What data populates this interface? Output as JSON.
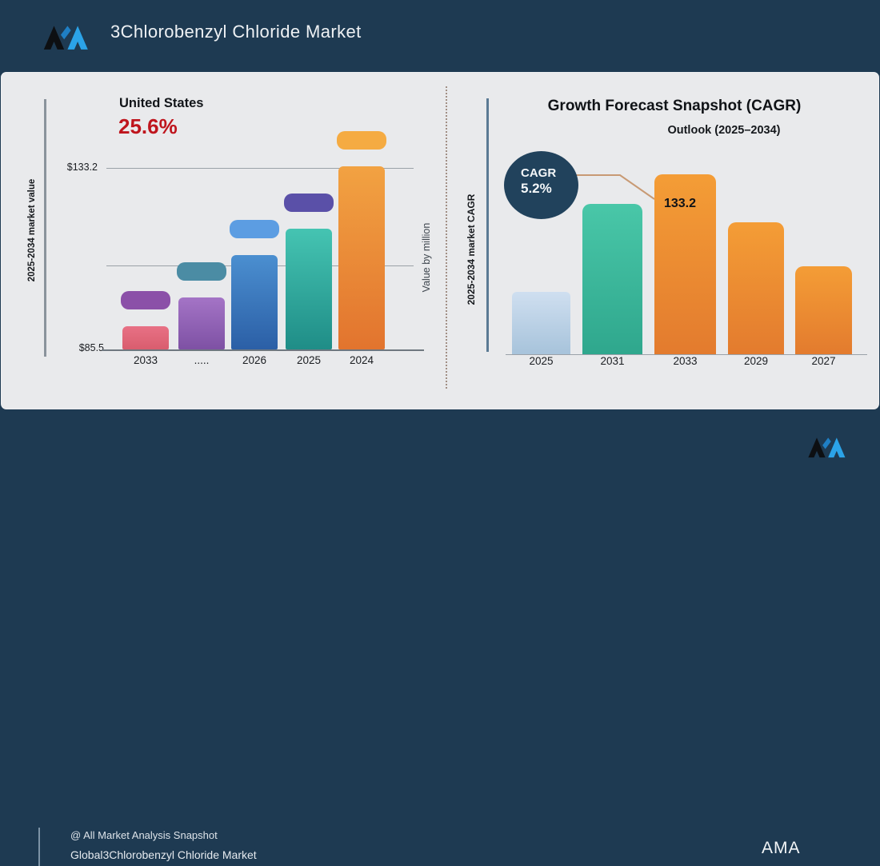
{
  "header": {
    "title": "3Chlorobenzyl Chloride Market"
  },
  "footer": {
    "line1": "@ All Market Analysis Snapshot",
    "line2": "Global3Chlorobenzyl Chloride Market",
    "brand": "AMA"
  },
  "left_chart": {
    "region_label": "United States",
    "growth_value": "25.6%",
    "y_axis_label": "2025-2034 market value",
    "tick_top": "$133.2",
    "tick_bottom": "$85.5"
  },
  "middle": {
    "value_label": "Value by million"
  },
  "right_chart": {
    "title": "Growth Forecast Snapshot (CAGR)",
    "subtitle": "Outlook (2025–2034)",
    "y_axis_label": "2025-2034 market CAGR",
    "cagr_label": "CAGR",
    "cagr_value": "5.2%",
    "bar_annotation": "133.2"
  },
  "colors": {
    "background_navy": "#1e3a52",
    "panel": "#e9eaec",
    "accent_red": "#bf151d",
    "connector_tan": "#c89a74",
    "divider_dotted": "#a18f85",
    "circle_navy": "#21425c"
  },
  "chart_data": [
    {
      "type": "bar",
      "title": "United States 25.6%",
      "ylabel": "2025-2034 market value",
      "y_axis_unit_note": "Value by million",
      "ylim": [
        85.5,
        140
      ],
      "y_reference_lines": [
        133.2,
        85.5
      ],
      "categories": [
        "2033",
        ".....",
        "2026",
        "2025",
        "2024"
      ],
      "values_estimated": [
        91.5,
        99,
        110.2,
        117,
        133.4
      ],
      "bars": [
        {
          "label": "2033",
          "value": 91.5,
          "grad": [
            "#e87185",
            "#d95d6e"
          ],
          "cap_color": "#8b50a8"
        },
        {
          "label": ".....",
          "value": 99,
          "grad": [
            "#a474c6",
            "#7e51a4"
          ],
          "cap_color": "#4b8ca4"
        },
        {
          "label": "2026",
          "value": 110.2,
          "grad": [
            "#4b8fd0",
            "#2b5fa6"
          ],
          "cap_color": "#5c9de2"
        },
        {
          "label": "2025",
          "value": 117,
          "grad": [
            "#45c4b2",
            "#1f8d87"
          ],
          "cap_color": "#5a50a8"
        },
        {
          "label": "2024",
          "value": 133.4,
          "grad": [
            "#f2a242",
            "#e2742e"
          ],
          "cap_color": "#f5ab42"
        }
      ]
    },
    {
      "type": "stacked-bar",
      "title": "Growth Forecast Snapshot (CAGR)",
      "subtitle": "Outlook (2025–2034)",
      "ylabel": "2025-2034 market CAGR",
      "cagr": "5.2%",
      "annotated_value": {
        "category": "2033",
        "text": "133.2"
      },
      "categories": [
        "2025",
        "2031",
        "2033",
        "2029",
        "2027"
      ],
      "palette": {
        "navy": [
          "#3d6381",
          "#2b4b64"
        ],
        "light": [
          "#cfdff0",
          "#a7c3db"
        ],
        "teal": [
          "#49c7a8",
          "#2fa78d"
        ],
        "orange": [
          "#f49d36",
          "#e37b2e"
        ]
      },
      "bars": [
        {
          "label": "2025",
          "segments": [
            {
              "c": "navy",
              "h": 36
            },
            {
              "c": "light",
              "h": 42
            }
          ]
        },
        {
          "label": "2031",
          "segments": [
            {
              "c": "navy",
              "h": 46
            },
            {
              "c": "light",
              "h": 39
            },
            {
              "c": "teal",
              "h": 103
            }
          ]
        },
        {
          "label": "2033",
          "segments": [
            {
              "c": "navy",
              "h": 50
            },
            {
              "c": "light",
              "h": 80
            },
            {
              "c": "orange",
              "h": 95
            }
          ]
        },
        {
          "label": "2029",
          "segments": [
            {
              "c": "navy",
              "h": 48
            },
            {
              "c": "light",
              "h": 25
            },
            {
              "c": "orange",
              "h": 92
            }
          ]
        },
        {
          "label": "2027",
          "segments": [
            {
              "c": "navy",
              "h": 30
            },
            {
              "c": "light",
              "h": 11
            },
            {
              "c": "orange",
              "h": 69
            }
          ]
        }
      ]
    }
  ]
}
